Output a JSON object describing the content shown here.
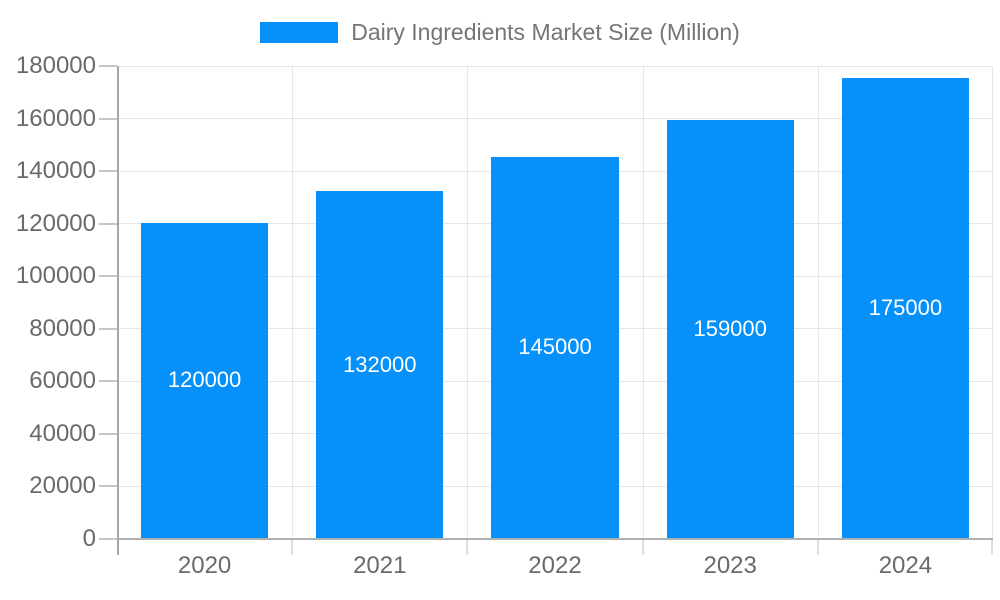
{
  "chart_data": {
    "type": "bar",
    "title": "Dairy Ingredients Market Size (Million)",
    "categories": [
      "2020",
      "2021",
      "2022",
      "2023",
      "2024"
    ],
    "values": [
      120000,
      132000,
      145000,
      159000,
      175000
    ],
    "bar_value_labels": [
      "120000",
      "132000",
      "145000",
      "159000",
      "175000"
    ],
    "ylim": [
      0,
      180000
    ],
    "ytick_step": 20000,
    "ytick_labels": [
      "0",
      "20000",
      "40000",
      "60000",
      "80000",
      "100000",
      "120000",
      "140000",
      "160000",
      "180000"
    ],
    "xlabel": "",
    "ylabel": "",
    "legend_position": "top-center",
    "grid": "both",
    "colors": {
      "bar": "#0590fa",
      "bar_label_text": "#ffffff",
      "legend_text": "#757575",
      "axis_text": "#6a6a6a",
      "grid_line": "#e6e6e6",
      "axis_line": "#b0b0b0",
      "background": "#ffffff"
    }
  }
}
